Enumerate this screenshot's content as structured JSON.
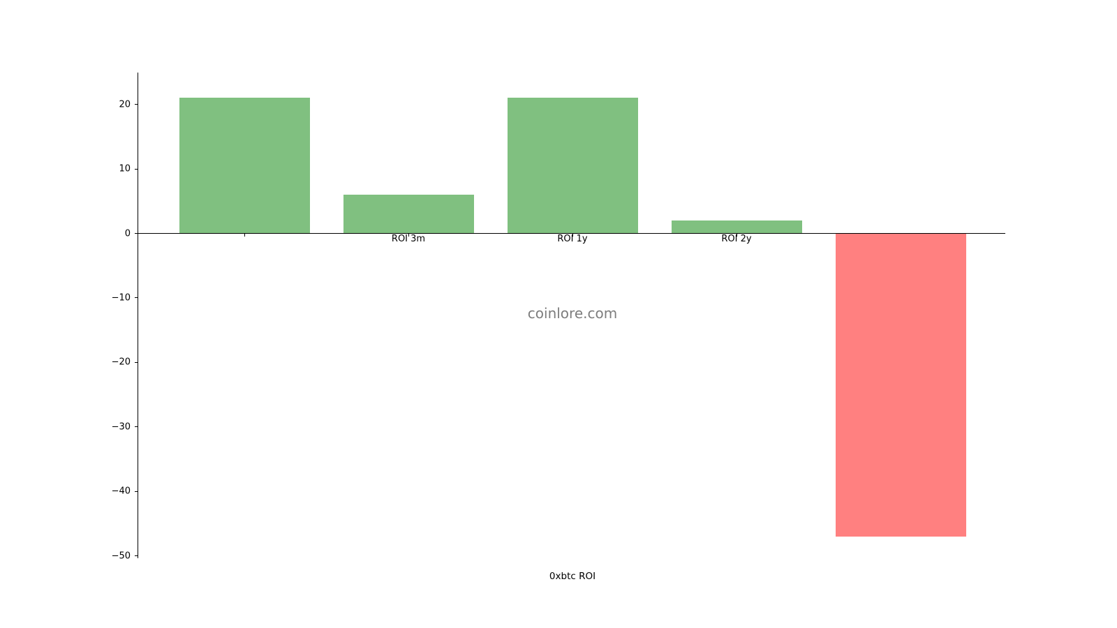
{
  "page": {
    "background": "#ffffff"
  },
  "chart_data": {
    "type": "bar",
    "title": "",
    "xlabel": "0xbtc ROI",
    "ylabel": "",
    "categories": [
      "",
      "ROI 3m",
      "ROI 1y",
      "ROI 2y",
      ""
    ],
    "values": [
      21,
      6,
      21,
      2,
      -47
    ],
    "series": [
      {
        "name": "0xbtc ROI",
        "values": [
          21,
          6,
          21,
          2,
          -47
        ]
      }
    ],
    "positive_color": "#80c080",
    "negative_color": "#ff8080",
    "axis_color": "#000000",
    "ylim": [
      -50,
      24.5
    ],
    "yticks": [
      20,
      10,
      0,
      -10,
      -20,
      -30,
      -40,
      -50
    ],
    "ytick_labels": [
      "20",
      "10",
      "0",
      "−10",
      "−20",
      "−30",
      "−40",
      "−50"
    ],
    "grid": false,
    "legend_position": "none",
    "watermark": "coinlore.com",
    "watermark_color": "#7d7d7d",
    "baseline": 0
  }
}
